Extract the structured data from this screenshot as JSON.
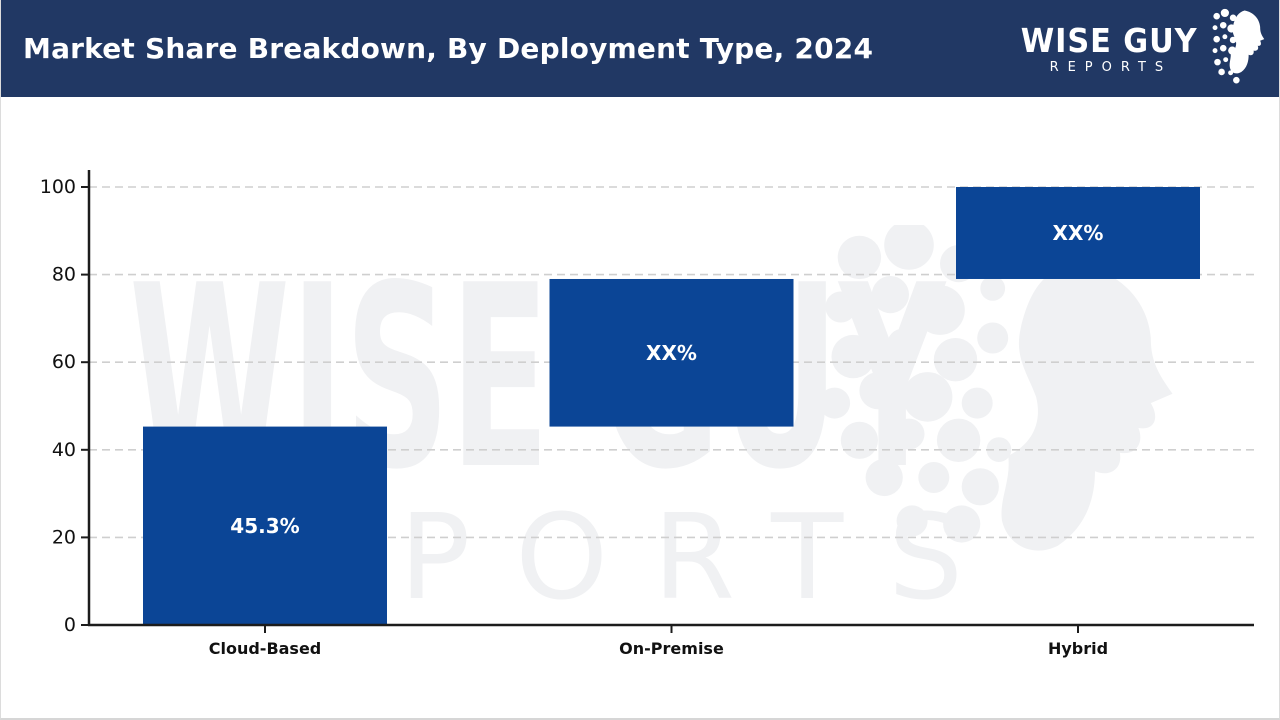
{
  "header": {
    "title": "Market Share Breakdown, By Deployment Type, 2024",
    "brand": {
      "name": "WISE GUY",
      "subtitle": "REPORTS",
      "icon": "dotted-head-profile"
    }
  },
  "watermark": {
    "line1": "WISE GUY",
    "line2": "REPORTS"
  },
  "chart_data": {
    "type": "bar",
    "subtype": "waterfall-stacked",
    "title": "Market Share Breakdown, By Deployment Type, 2024",
    "categories": [
      "Cloud-Based",
      "On-Premise",
      "Hybrid"
    ],
    "series": [
      {
        "name": "Cloud-Based",
        "start": 0,
        "end": 45.3,
        "label": "45.3%"
      },
      {
        "name": "On-Premise",
        "start": 45.3,
        "end": 79,
        "label": "XX%"
      },
      {
        "name": "Hybrid",
        "start": 79,
        "end": 100,
        "label": "XX%"
      }
    ],
    "xlabel": "",
    "ylabel": "",
    "ylim": [
      0,
      100
    ],
    "yticks": [
      0,
      20,
      40,
      60,
      80,
      100
    ],
    "grid": "horizontal-dashed",
    "legend": "none",
    "bar_color": "#0b4596",
    "bar_label_color": "#ffffff"
  },
  "colors": {
    "header_bg": "#213864",
    "header_text": "#ffffff",
    "bar": "#0b4596",
    "grid": "#cfcfcf",
    "axis": "#1c1c1c",
    "tick_text": "#111111",
    "watermark": "#f0f1f3",
    "page_border": "#dcdcdc"
  }
}
